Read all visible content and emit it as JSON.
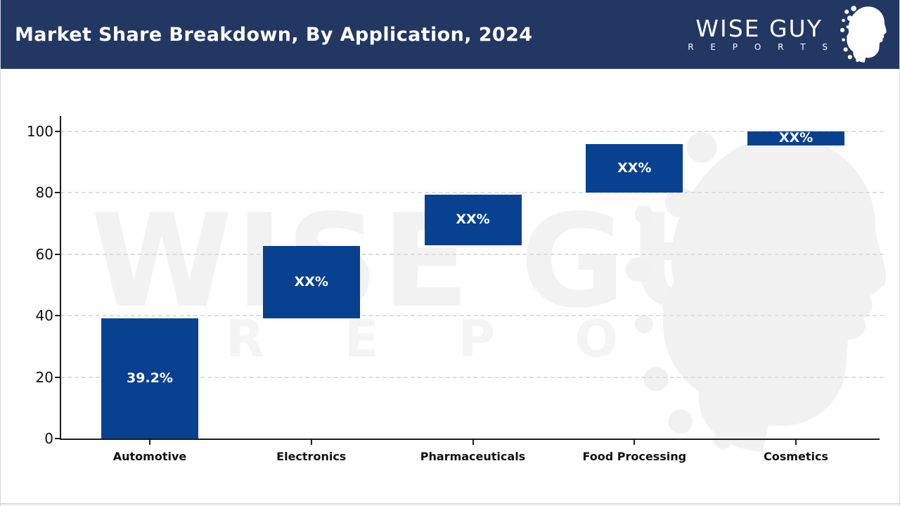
{
  "header": {
    "title": "Market Share Breakdown, By Application, 2024",
    "bg_color": "#233763",
    "logo": {
      "line1": "WISE GUY",
      "line2": "R E P O R T S"
    }
  },
  "watermark": {
    "line1": "WISE GUY",
    "line2": "R E P O R T S"
  },
  "chart_data": {
    "type": "bar",
    "subtype": "waterfall",
    "title": "Market Share Breakdown, By Application, 2024",
    "categories": [
      "Automotive",
      "Electronics",
      "Pharmaceuticals",
      "Food Processing",
      "Cosmetics"
    ],
    "segments": [
      {
        "category": "Automotive",
        "start": 0,
        "end": 39.2,
        "label": "39.2%"
      },
      {
        "category": "Electronics",
        "start": 39.2,
        "end": 62.6,
        "label": "XX%"
      },
      {
        "category": "Pharmaceuticals",
        "start": 63.0,
        "end": 79.5,
        "label": "XX%"
      },
      {
        "category": "Food Processing",
        "start": 80.0,
        "end": 95.8,
        "label": "XX%"
      },
      {
        "category": "Cosmetics",
        "start": 95.5,
        "end": 100.0,
        "label": "XX%"
      }
    ],
    "xlabel": "",
    "ylabel": "",
    "ylim": [
      0,
      105
    ],
    "yticks": [
      0,
      20,
      40,
      60,
      80,
      100
    ],
    "grid": "horizontal dashed, behind bars",
    "legend": "none",
    "bar_color": "#07418f",
    "bar_label_color": "#ffffff",
    "axis_color": "#1c1c1c"
  }
}
